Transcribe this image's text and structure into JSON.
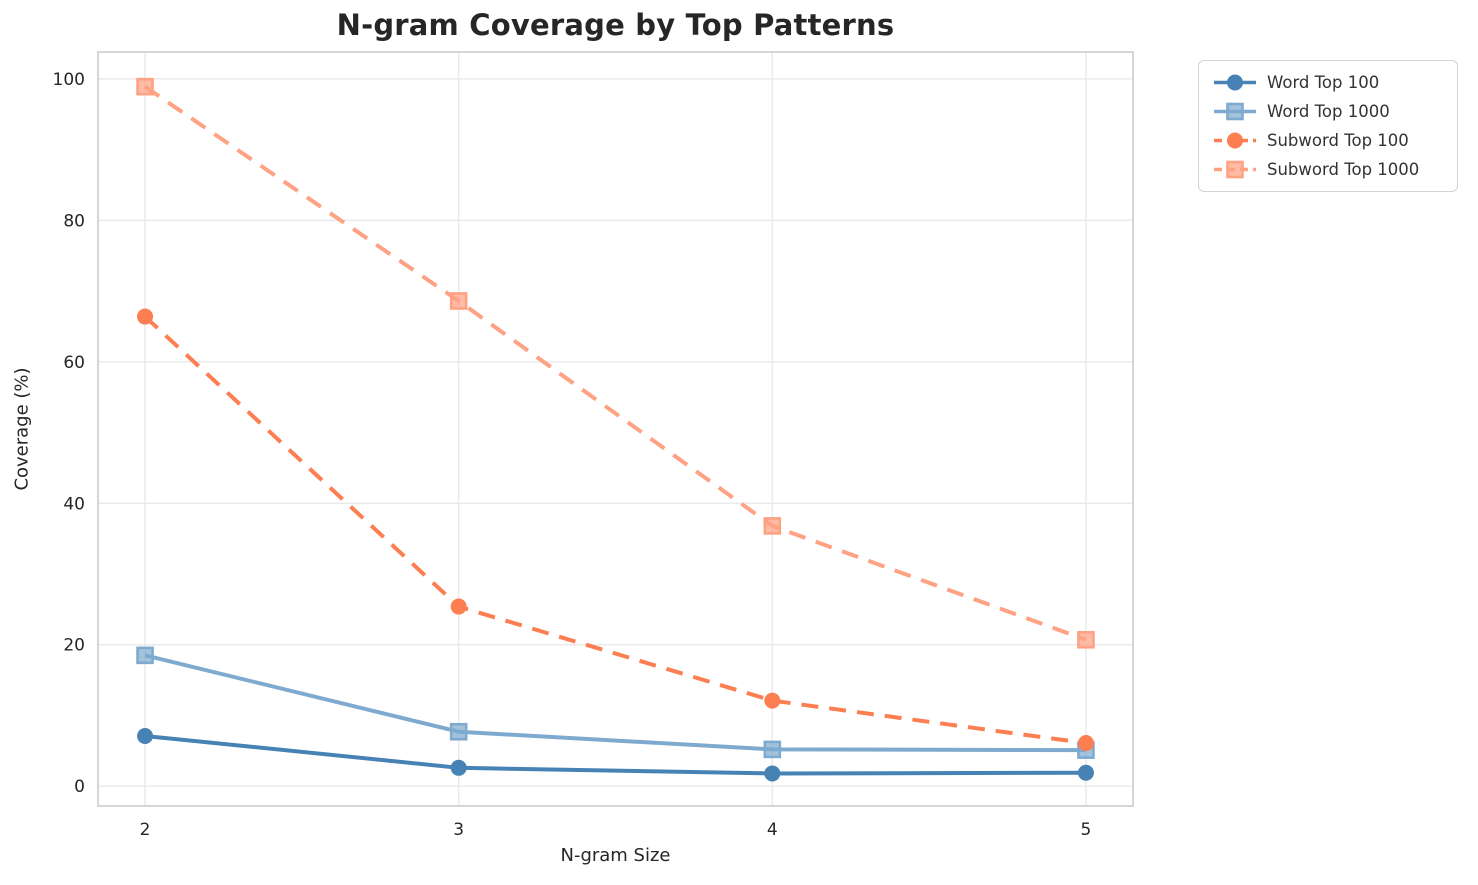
{
  "chart_data": {
    "type": "line",
    "title": "N-gram Coverage by Top Patterns",
    "xlabel": "N-gram Size",
    "ylabel": "Coverage (%)",
    "x": [
      2,
      3,
      4,
      5
    ],
    "xticks": [
      2,
      3,
      4,
      5
    ],
    "yticks": [
      0,
      20,
      40,
      60,
      80,
      100
    ],
    "xlim": [
      1.85,
      5.15
    ],
    "ylim": [
      -2.8,
      103.8
    ],
    "grid": true,
    "legend_position": "outside-upper-right",
    "series": [
      {
        "name": "Word Top 100",
        "values": [
          7.1,
          2.6,
          1.8,
          1.9
        ],
        "color": "#4682b4",
        "marker": "circle",
        "line_style": "solid"
      },
      {
        "name": "Word Top 1000",
        "values": [
          18.5,
          7.7,
          5.2,
          5.1
        ],
        "color": "#7faacf",
        "marker": "square",
        "line_style": "solid"
      },
      {
        "name": "Subword Top 100",
        "values": [
          66.4,
          25.4,
          12.1,
          6.1
        ],
        "color": "#fc7e51",
        "marker": "circle",
        "line_style": "dashed"
      },
      {
        "name": "Subword Top 1000",
        "values": [
          98.9,
          68.6,
          36.8,
          20.7
        ],
        "color": "#ffa183",
        "marker": "square",
        "line_style": "dashed"
      }
    ],
    "colors": {
      "background": "#ffffff",
      "grid": "#e9e9e9",
      "spine": "#cccccc",
      "text": "#262626"
    }
  }
}
